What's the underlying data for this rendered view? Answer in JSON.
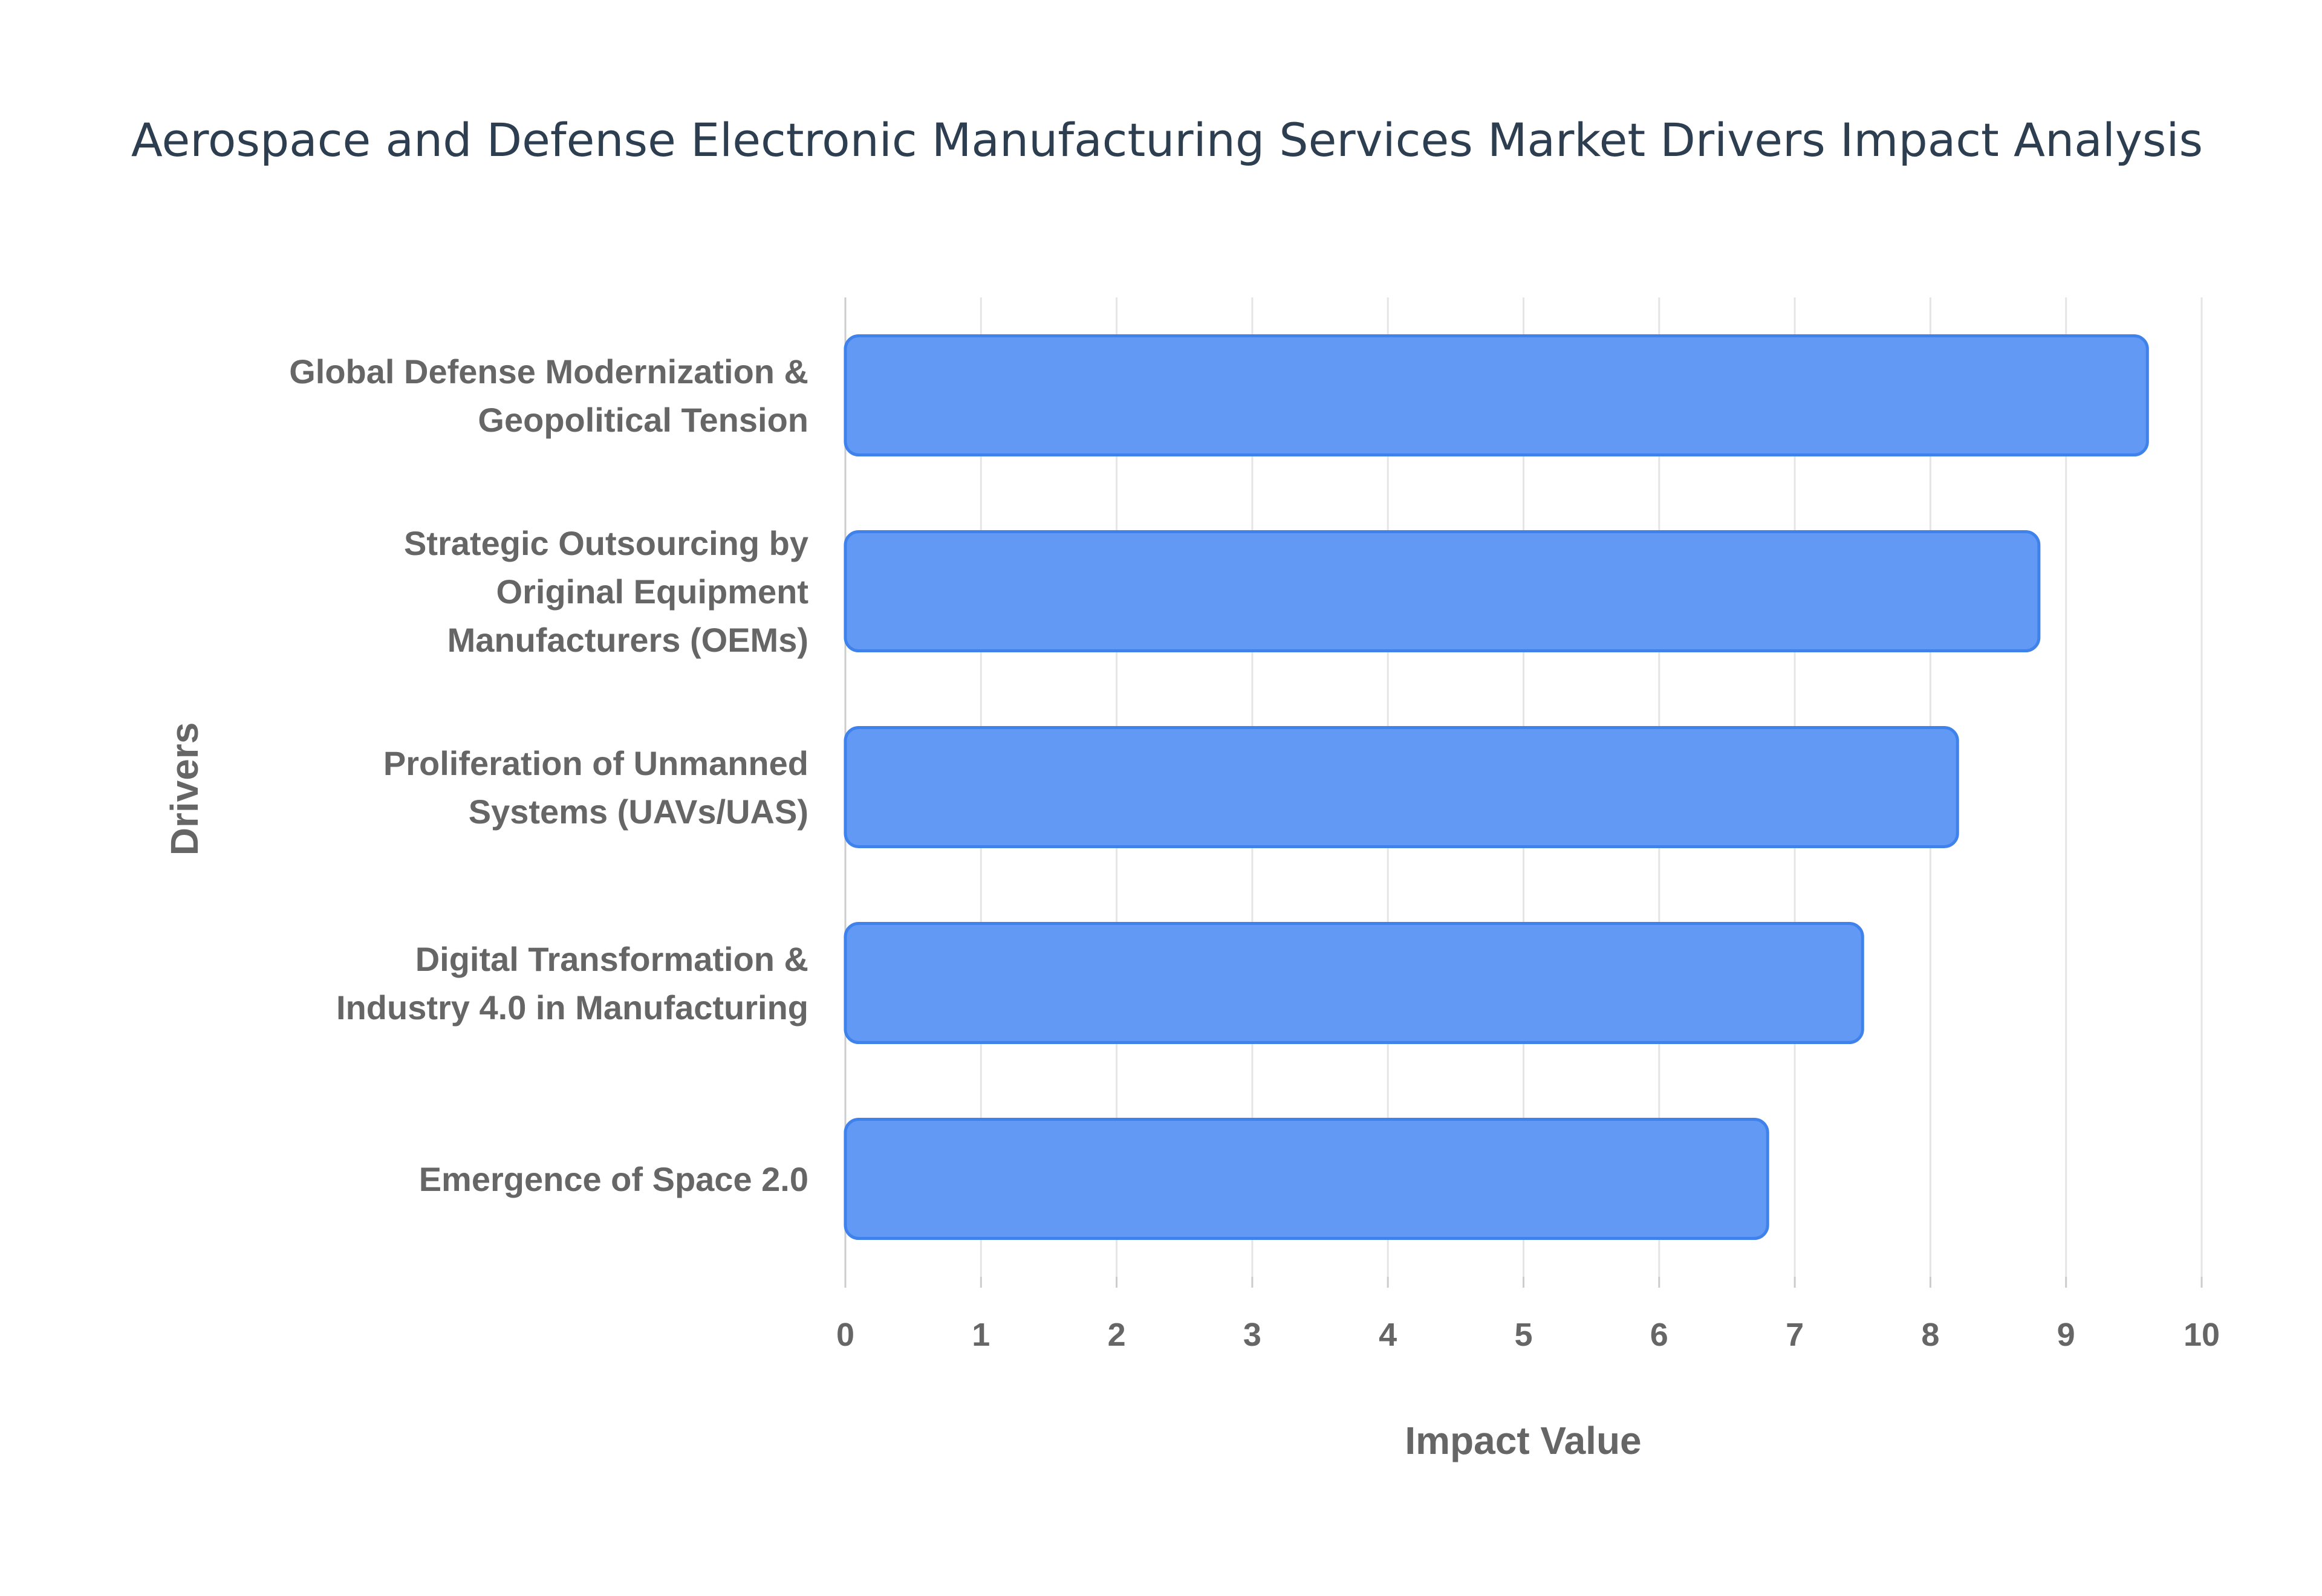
{
  "chart_data": {
    "type": "bar",
    "orientation": "horizontal",
    "title": "Aerospace and Defense Electronic Manufacturing Services Market Drivers Impact Analysis",
    "xlabel": "Impact Value",
    "ylabel": "Drivers",
    "categories": [
      [
        "Global Defense Modernization &",
        "Geopolitical Tension"
      ],
      [
        "Strategic Outsourcing by",
        "Original Equipment",
        "Manufacturers (OEMs)"
      ],
      [
        "Proliferation of Unmanned",
        "Systems (UAVs/UAS)"
      ],
      [
        "Digital Transformation &",
        "Industry 4.0 in Manufacturing"
      ],
      [
        "Emergence of Space 2.0"
      ]
    ],
    "values": [
      9.6,
      8.8,
      8.2,
      7.5,
      6.8
    ],
    "xlim": [
      0,
      10
    ],
    "xticks": [
      "0",
      "1",
      "2",
      "3",
      "4",
      "5",
      "6",
      "7",
      "8",
      "9",
      "10"
    ],
    "grid": true,
    "legend": "none",
    "colors": {
      "bar_fill": "#6199f5",
      "bar_stroke": "#3f82ec",
      "grid": "#e5e5e5",
      "text": "#666666",
      "title": "#2c3e50"
    }
  }
}
